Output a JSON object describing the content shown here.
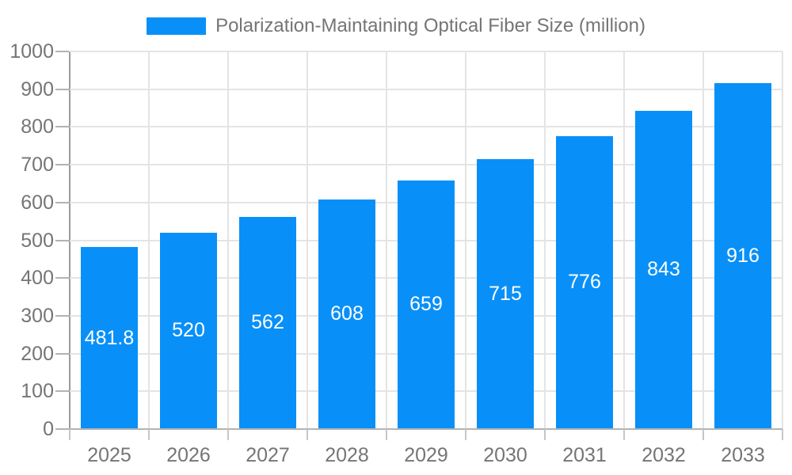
{
  "chart_data": {
    "type": "bar",
    "title": "Polarization-Maintaining Optical Fiber Size (million)",
    "series_name": "Polarization-Maintaining Optical Fiber Size (million)",
    "categories": [
      "2025",
      "2026",
      "2027",
      "2028",
      "2029",
      "2030",
      "2031",
      "2032",
      "2033"
    ],
    "values": [
      481.8,
      520,
      562,
      608,
      659,
      715,
      776,
      843,
      916
    ],
    "value_labels": [
      "481.8",
      "520",
      "562",
      "608",
      "659",
      "715",
      "776",
      "843",
      "916"
    ],
    "xlabel": "",
    "ylabel": "",
    "ylim": [
      0,
      1000
    ],
    "y_ticks": [
      0,
      100,
      200,
      300,
      400,
      500,
      600,
      700,
      800,
      900,
      1000
    ],
    "grid": true,
    "legend_position": "top",
    "colors": {
      "bar": "#0990f8",
      "bar_label": "#ffffff",
      "axis_text": "#757575",
      "gridline": "#e4e4e4",
      "axis_line": "#b3b3b3"
    }
  }
}
